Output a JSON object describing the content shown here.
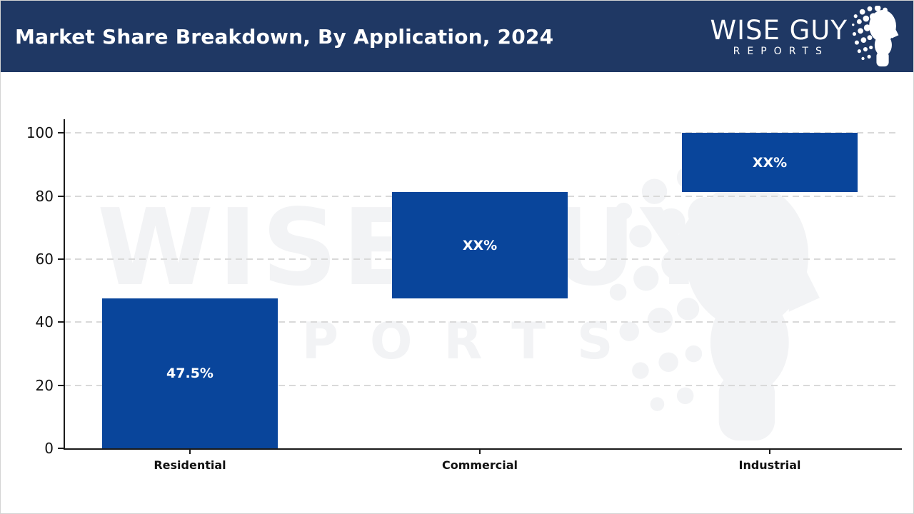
{
  "header": {
    "title": "Market Share Breakdown, By Application, 2024",
    "logo": {
      "name_line": "WISE GUY",
      "sub_line": "REPORTS"
    }
  },
  "watermark": {
    "name_line": "WISE GUY",
    "sub_line": "REPORTS"
  },
  "chart_data": {
    "type": "bar",
    "subtype": "floating-waterfall",
    "title": "Market Share Breakdown, By Application, 2024",
    "categories": [
      "Residential",
      "Commercial",
      "Industrial"
    ],
    "bars": [
      {
        "category": "Residential",
        "start": 0,
        "end": 47.5,
        "label": "47.5%"
      },
      {
        "category": "Commercial",
        "start": 47.5,
        "end": 81.25,
        "label": "XX%"
      },
      {
        "category": "Industrial",
        "start": 81.25,
        "end": 100,
        "label": "XX%"
      }
    ],
    "yticks": [
      0,
      20,
      40,
      60,
      80,
      100
    ],
    "ylim": [
      0,
      104
    ],
    "xlabel": "",
    "ylabel": "",
    "grid": "horizontal-dashed",
    "legend": "none",
    "bar_color": "#09459B",
    "value_label_color": "#ffffff"
  },
  "colors": {
    "header_bg": "#1F3864",
    "bar_blue": "#09459B",
    "gridline": "#d9d9d9",
    "axis": "#1a1a1a",
    "watermark": "#f2f3f5"
  }
}
